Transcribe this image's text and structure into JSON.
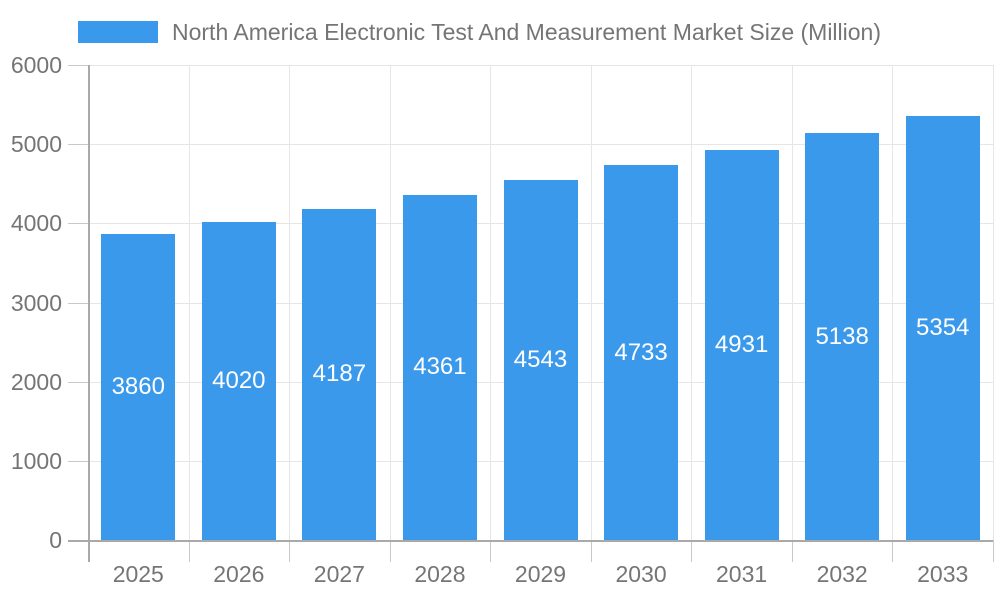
{
  "chart_data": {
    "type": "bar",
    "title": "North America Electronic Test And Measurement Market Size (Million)",
    "categories": [
      "2025",
      "2026",
      "2027",
      "2028",
      "2029",
      "2030",
      "2031",
      "2032",
      "2033"
    ],
    "values": [
      3860,
      4020,
      4187,
      4361,
      4543,
      4733,
      4931,
      5138,
      5354
    ],
    "xlabel": "",
    "ylabel": "",
    "ylim": [
      0,
      6000
    ],
    "yticks": [
      0,
      1000,
      2000,
      3000,
      4000,
      5000,
      6000
    ],
    "grid": true,
    "legend_position": "top",
    "bar_labels_inside": true,
    "colors": {
      "bar": "#3b99ec",
      "bar_label_text": "#ffffff",
      "axis_text": "#757575",
      "legend_text": "#757575",
      "gridline": "#e6e6e6",
      "axis_line": "#a9a9a9",
      "tick_line": "#c9c9c9",
      "background": "#ffffff"
    }
  }
}
